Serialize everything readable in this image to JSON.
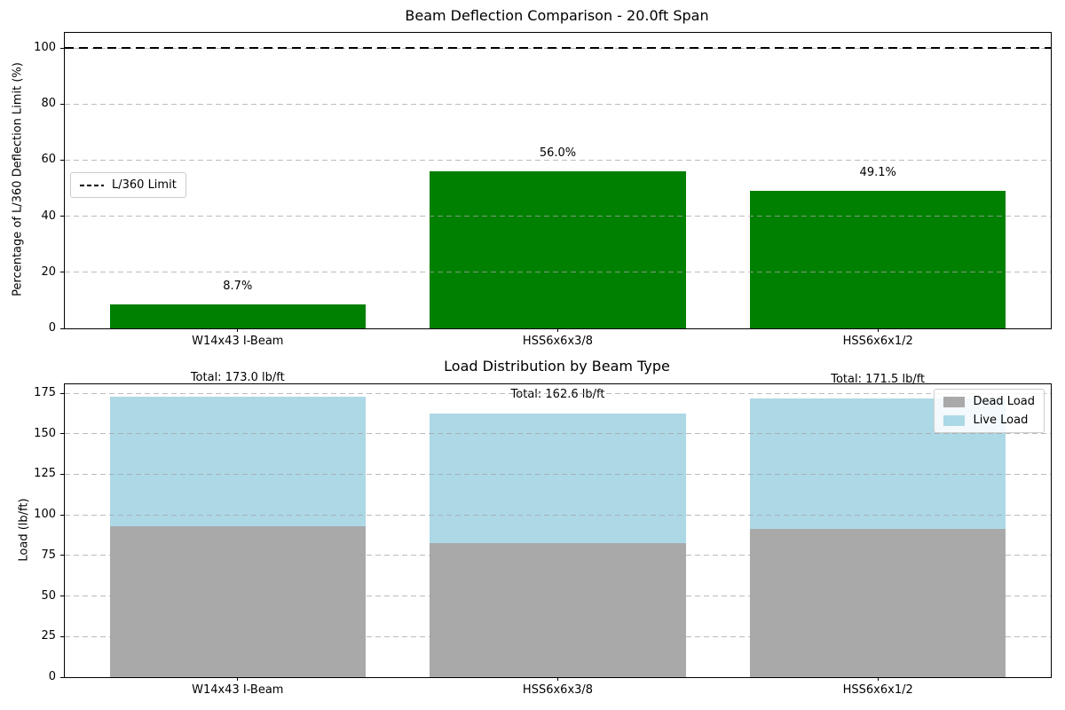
{
  "figure": {
    "background": "#ffffff",
    "spine_color": "#000000",
    "grid_color": "#a5a5a5"
  },
  "chart_data": [
    {
      "type": "bar",
      "title": "Beam Deflection Comparison - 20.0ft Span",
      "xlabel": "",
      "ylabel": "Percentage of L/360 Deflection Limit (%)",
      "categories": [
        "W14x43 I-Beam",
        "HSS6x6x3/8",
        "HSS6x6x1/2"
      ],
      "values": [
        8.7,
        56.0,
        49.1
      ],
      "bar_labels": [
        "8.7%",
        "56.0%",
        "49.1%"
      ],
      "bar_color": "#008000",
      "yticks": [
        0,
        20,
        40,
        60,
        80,
        100
      ],
      "ylim": [
        0,
        105.4
      ],
      "grid": {
        "axis": "y",
        "style": "dashed"
      },
      "ref_line": {
        "value": 100,
        "style": "dashed",
        "color": "#000000",
        "label": "L/360 Limit"
      },
      "legend": {
        "position": "center-left",
        "items": [
          {
            "label": "L/360 Limit",
            "marker": "dashed-line",
            "color": "#000000"
          }
        ]
      }
    },
    {
      "type": "stacked-bar",
      "title": "Load Distribution by Beam Type",
      "xlabel": "",
      "ylabel": "Load (lb/ft)",
      "categories": [
        "W14x43 I-Beam",
        "HSS6x6x3/8",
        "HSS6x6x1/2"
      ],
      "series": [
        {
          "name": "Dead Load",
          "color": "#a9a9a9",
          "values": [
            93.0,
            82.6,
            91.5
          ]
        },
        {
          "name": "Live Load",
          "color": "#add8e6",
          "values": [
            80.0,
            80.0,
            80.0
          ]
        }
      ],
      "totals": [
        173.0,
        162.6,
        171.5
      ],
      "total_labels": [
        "Total: 173.0 lb/ft",
        "Total: 162.6 lb/ft",
        "Total: 171.5 lb/ft"
      ],
      "yticks": [
        0,
        25,
        50,
        75,
        100,
        125,
        150,
        175
      ],
      "ylim": [
        0,
        180.5
      ],
      "grid": {
        "axis": "y",
        "style": "dashed"
      },
      "legend": {
        "position": "upper-right",
        "items": [
          {
            "label": "Dead Load",
            "marker": "swatch",
            "color": "#a9a9a9"
          },
          {
            "label": "Live Load",
            "marker": "swatch",
            "color": "#add8e6"
          }
        ]
      }
    }
  ]
}
